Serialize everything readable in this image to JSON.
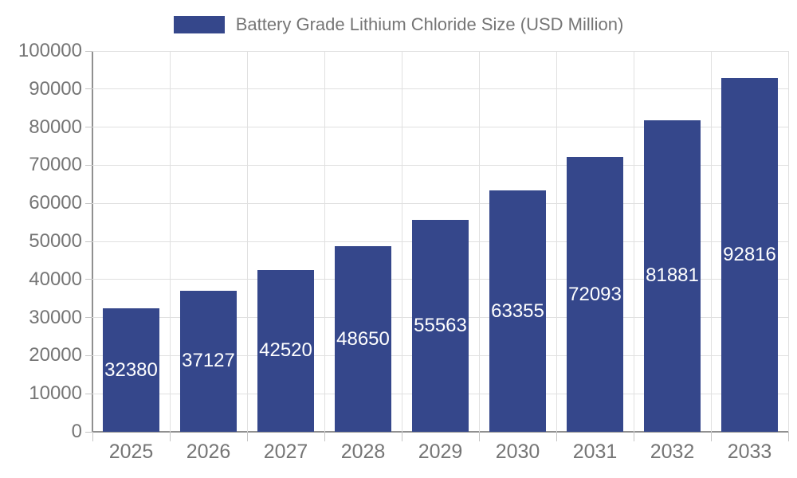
{
  "legend": {
    "label": "Battery Grade Lithium Chloride Size (USD Million)"
  },
  "chart_data": {
    "type": "bar",
    "title": "Battery Grade Lithium Chloride Size (USD Million)",
    "categories": [
      "2025",
      "2026",
      "2027",
      "2028",
      "2029",
      "2030",
      "2031",
      "2032",
      "2033"
    ],
    "values": [
      32380,
      37127,
      42520,
      48650,
      55563,
      63355,
      72093,
      81881,
      92816
    ],
    "value_labels": [
      "32380",
      "37127",
      "42520",
      "48650",
      "55563",
      "63355",
      "72093",
      "81881",
      "92816"
    ],
    "xlabel": "",
    "ylabel": "",
    "ylim": [
      0,
      100000
    ],
    "ytick_step": 10000,
    "ytick_labels": [
      "0",
      "10000",
      "20000",
      "30000",
      "40000",
      "50000",
      "60000",
      "70000",
      "80000",
      "90000",
      "100000"
    ],
    "grid": true,
    "legend_position": "top-center",
    "colors": {
      "bar": "#35478b",
      "value_text": "#ffffff",
      "axis_text": "#757575",
      "grid_line": "#e0e0e0",
      "axis_line": "#909090"
    }
  }
}
